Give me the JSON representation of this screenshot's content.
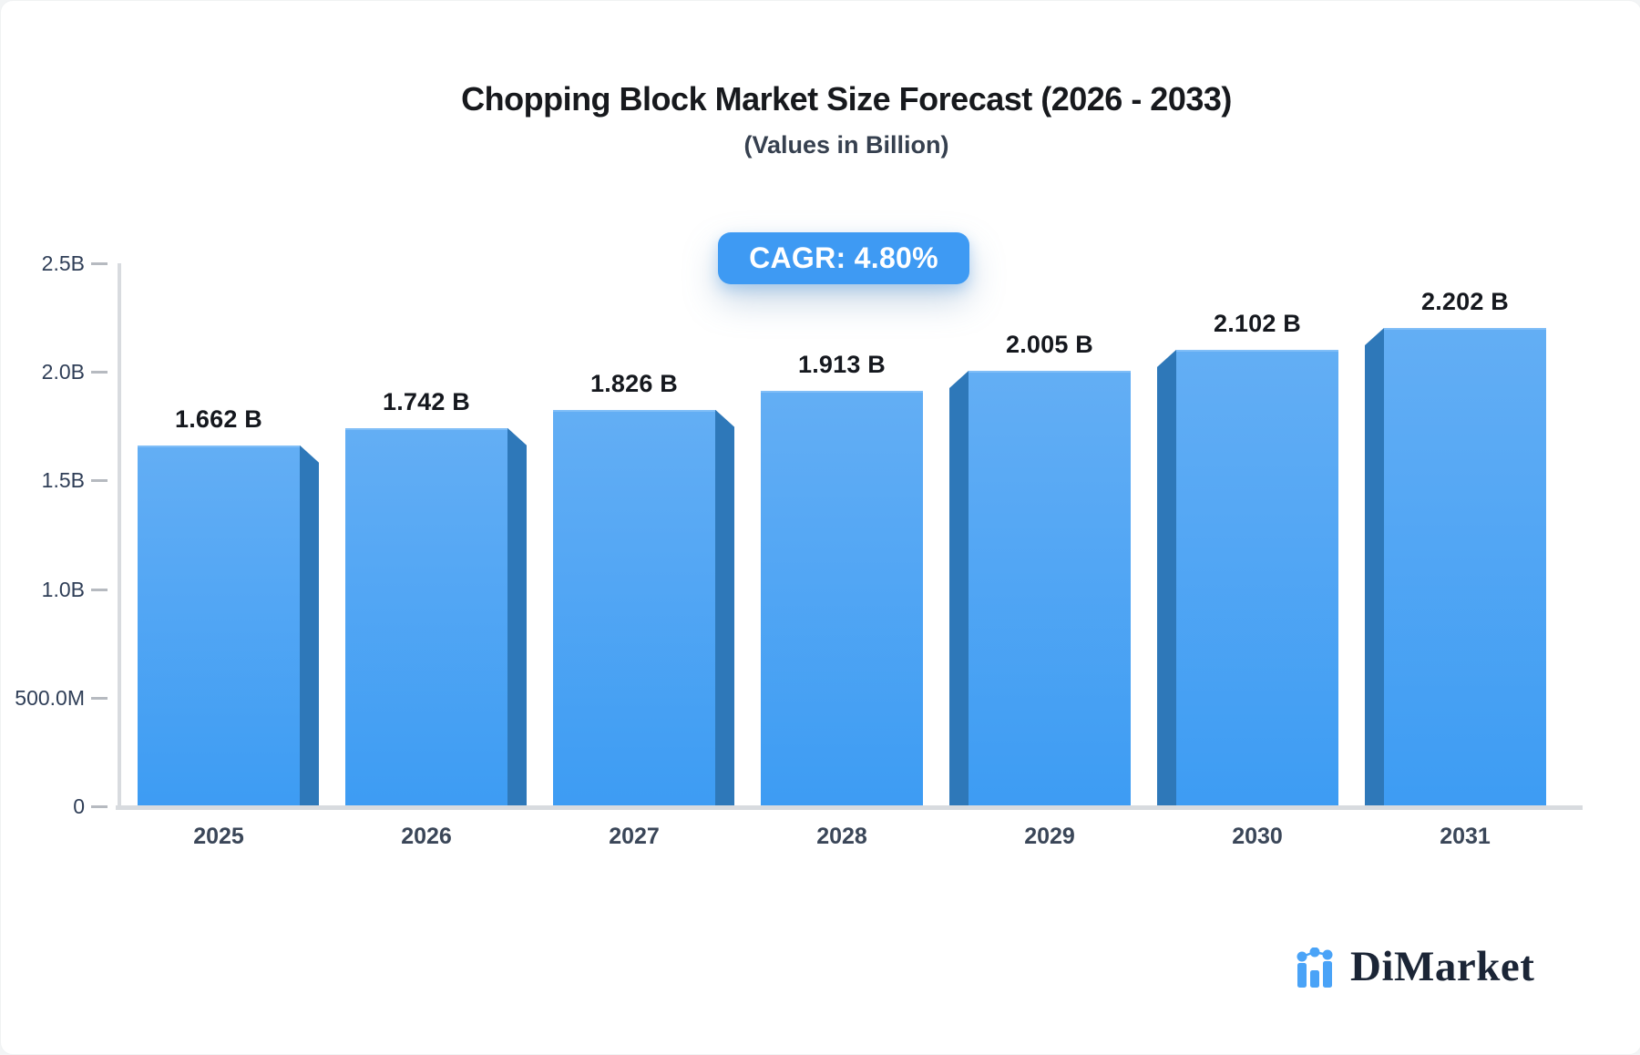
{
  "header": {
    "title": "Chopping Block Market Size Forecast (2026 - 2033)",
    "subtitle": "(Values in Billion)",
    "badge_label": "CAGR: 4.80%"
  },
  "brand": {
    "name": "DiMarket",
    "icon": "bar-chart-icon"
  },
  "colors": {
    "badge_bg": "#3e9af3",
    "bar_top": "#63aef4",
    "bar_bottom": "#3d9cf3",
    "bar_side": "#2e78b9",
    "axis": "#d8dbdf",
    "logo_blue": "#4aa3f7",
    "logo_text": "#1b2536"
  },
  "chart_data": {
    "type": "bar",
    "title": "Chopping Block Market Size Forecast (2026 - 2033)",
    "subtitle": "(Values in Billion)",
    "cagr": "4.80%",
    "categories": [
      "2025",
      "2026",
      "2027",
      "2028",
      "2029",
      "2030",
      "2031"
    ],
    "values": [
      1.662,
      1.742,
      1.826,
      1.913,
      2.005,
      2.102,
      2.202
    ],
    "bar_labels": [
      "1.662 B",
      "1.742 B",
      "1.826 B",
      "1.913 B",
      "2.005 B",
      "2.102 B",
      "2.202 B"
    ],
    "yticks": [
      {
        "label": "2.5B",
        "value": 2.5
      },
      {
        "label": "2.0B",
        "value": 2.0
      },
      {
        "label": "1.5B",
        "value": 1.5
      },
      {
        "label": "1.0B",
        "value": 1.0
      },
      {
        "label": "500.0M",
        "value": 0.5
      },
      {
        "label": "0",
        "value": 0
      }
    ],
    "xlabel": "",
    "ylabel": "",
    "ylim": [
      0,
      2.5
    ],
    "grid": false,
    "legend": false,
    "style": "3d-perspective-bars"
  }
}
